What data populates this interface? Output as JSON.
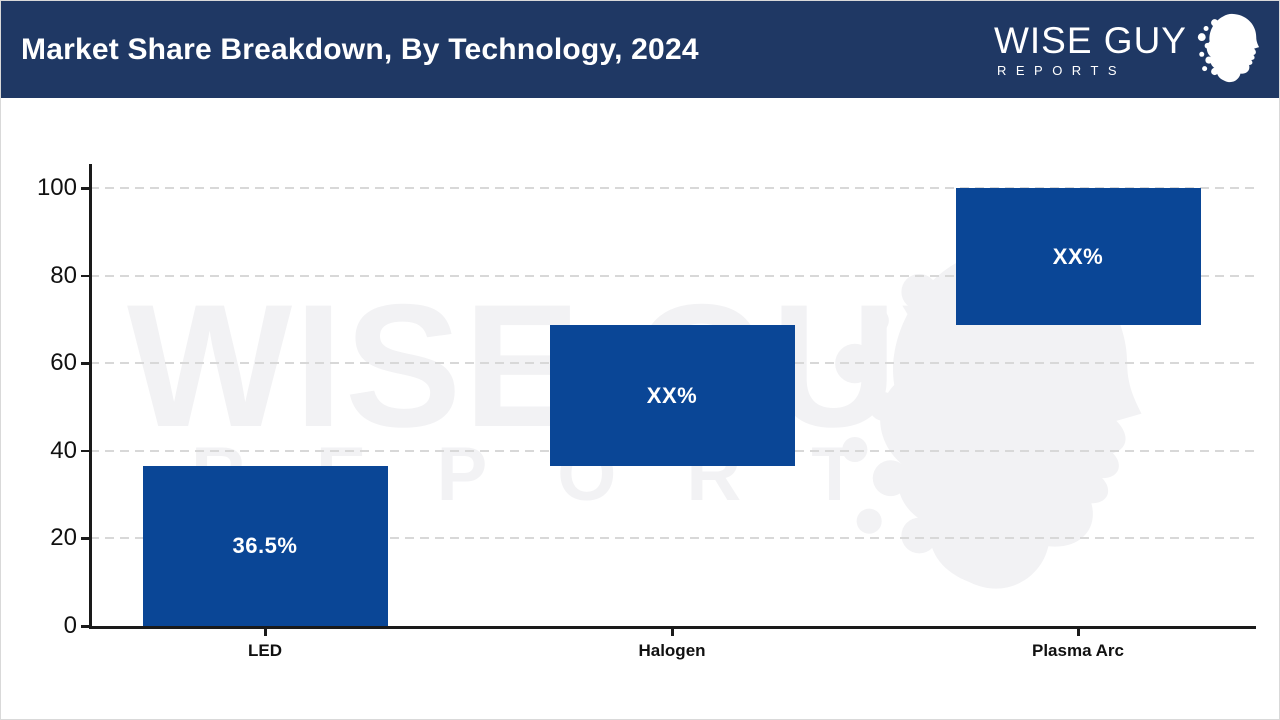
{
  "header": {
    "title": "Market Share Breakdown, By Technology, 2024",
    "brand": {
      "line1": "WISE GUY",
      "line2": "REPORTS"
    }
  },
  "watermark": {
    "line1": "WISE GUY",
    "line2": "REPORTS"
  },
  "chart_data": {
    "type": "bar",
    "variant": "waterfall-floating-bars",
    "title": "Market Share Breakdown, By Technology, 2024",
    "categories": [
      "LED",
      "Halogen",
      "Plasma Arc"
    ],
    "segments": [
      {
        "category": "LED",
        "start": 0,
        "end": 36.5,
        "label": "36.5%"
      },
      {
        "category": "Halogen",
        "start": 36.5,
        "end": 68.7,
        "label": "XX%"
      },
      {
        "category": "Plasma Arc",
        "start": 68.7,
        "end": 100,
        "label": "XX%"
      }
    ],
    "xlabel": "",
    "ylabel": "",
    "ylim": [
      0,
      100
    ],
    "yticks": [
      0,
      20,
      40,
      60,
      80,
      100
    ],
    "grid": {
      "horizontal": true,
      "style": "dashed"
    },
    "legend": null,
    "bar_color": "#0a4696",
    "bar_label_color": "#ffffff"
  },
  "colors": {
    "header_bg": "#1f3864",
    "bar": "#0a4696",
    "gridline": "#d8d8d8",
    "axis": "#1a1a1a",
    "watermark": "#f2f2f4",
    "page_border": "#d9d9d9"
  }
}
